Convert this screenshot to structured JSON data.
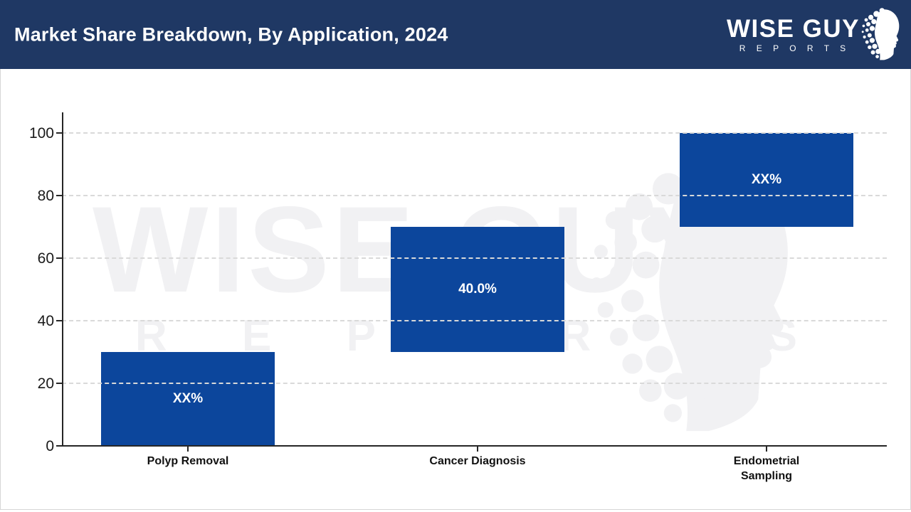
{
  "header": {
    "title": "Market Share Breakdown, By Application, 2024",
    "logo_line1": "WISE GUY",
    "logo_line2": "R E P O R T S"
  },
  "watermark": {
    "line1": "WISE GUY",
    "line2": "R E P O R T S"
  },
  "theme": {
    "header_bg": "#1f3864",
    "bar_color": "#0c469c",
    "bar_label_color": "#ffffff",
    "axis_color": "#262626",
    "grid_color": "#d9d9d9",
    "tick_label_color": "#1a1a1a",
    "watermark_color": "#f1f1f3"
  },
  "chart_data": {
    "type": "bar",
    "variant": "floating_range_bars",
    "title": "Market Share Breakdown, By Application, 2024",
    "categories": [
      "Polyp Removal",
      "Cancer Diagnosis",
      "Endometrial Sampling"
    ],
    "tick_display": [
      "Polyp Removal",
      "Cancer Diagnosis",
      "Endometrial\nSampling"
    ],
    "series": [
      {
        "name": "Market Share",
        "ranges": [
          {
            "category": "Polyp Removal",
            "from": 0,
            "to": 30,
            "label": "XX%"
          },
          {
            "category": "Cancer Diagnosis",
            "from": 30,
            "to": 70,
            "label": "40.0%"
          },
          {
            "category": "Endometrial Sampling",
            "from": 70,
            "to": 100,
            "label": "XX%"
          }
        ]
      }
    ],
    "yticks": [
      0,
      20,
      40,
      60,
      80,
      100
    ],
    "ylim": [
      0,
      106
    ],
    "xlabel": "",
    "ylabel": "",
    "grid": "horizontal-dashed",
    "legend": "none"
  }
}
